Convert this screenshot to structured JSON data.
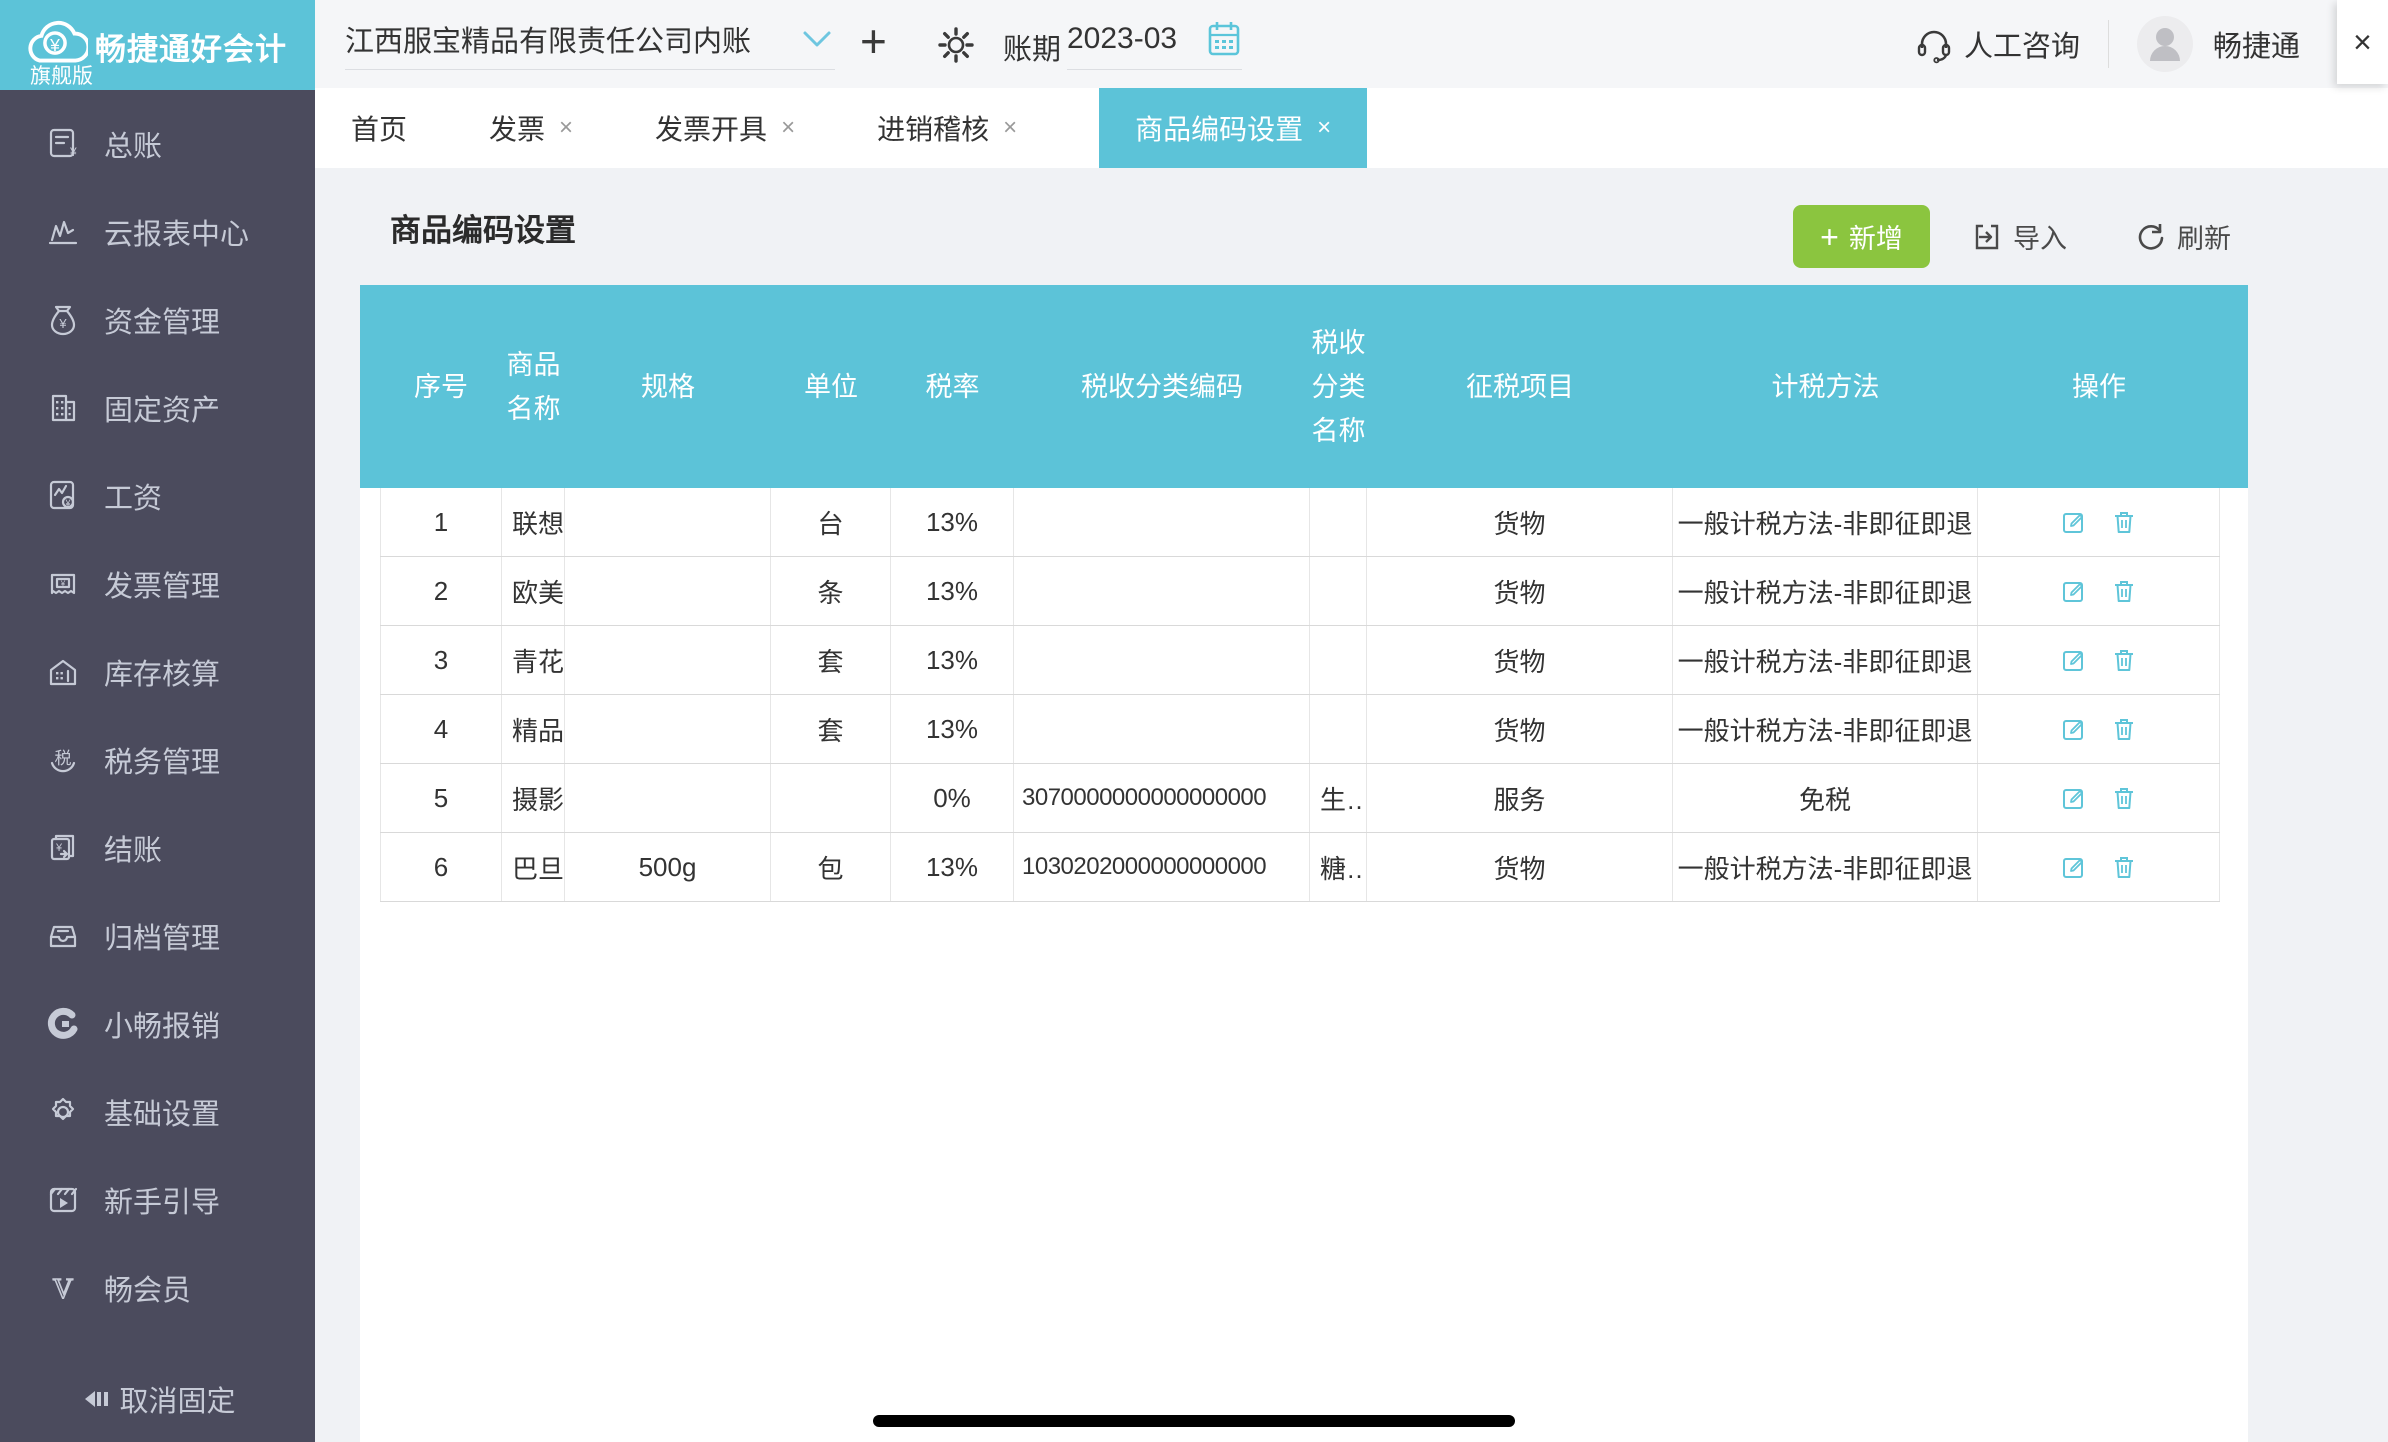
{
  "colors": {
    "teal": "#5cc3d8",
    "sidebar": "#4b4b5d",
    "green": "#8bc53f",
    "icon_teal": "#5fc5d9",
    "page_bg": "#f0f2f5"
  },
  "logo": {
    "title": "畅捷通好会计",
    "subtitle": "旗舰版",
    "icon": "cloud-finance-icon"
  },
  "topbar": {
    "company": "江西服宝精品有限责任公司内账",
    "add_label": "+",
    "period_label": "账期",
    "period_value": "2023-03",
    "support_label": "人工咨询",
    "user_name": "畅捷通"
  },
  "tabs": [
    {
      "label": "首页",
      "closable": false,
      "active": false
    },
    {
      "label": "发票",
      "closable": true,
      "active": false
    },
    {
      "label": "发票开具",
      "closable": true,
      "active": false
    },
    {
      "label": "进销稽核",
      "closable": true,
      "active": false
    },
    {
      "label": "商品编码设置",
      "closable": true,
      "active": true
    }
  ],
  "tabbar_close_label": "×",
  "page": {
    "title": "商品编码设置",
    "add_button": "新增",
    "import_button": "导入",
    "refresh_button": "刷新"
  },
  "table": {
    "columns": [
      "序号",
      "商品名称",
      "规格",
      "单位",
      "税率",
      "税收分类编码",
      "税收分类名称",
      "征税项目",
      "计税方法",
      "操作"
    ],
    "rows": [
      {
        "no": "1",
        "name": "联想笔记本",
        "spec": "",
        "unit": "台",
        "rate": "13%",
        "code": "",
        "cat": "",
        "item": "货物",
        "method": "一般计税方法-非即征即退"
      },
      {
        "no": "2",
        "name": "欧美集",
        "spec": "",
        "unit": "条",
        "rate": "13%",
        "code": "",
        "cat": "",
        "item": "货物",
        "method": "一般计税方法-非即征即退"
      },
      {
        "no": "3",
        "name": "青花瓷",
        "spec": "",
        "unit": "套",
        "rate": "13%",
        "code": "",
        "cat": "",
        "item": "货物",
        "method": "一般计税方法-非即征即退"
      },
      {
        "no": "4",
        "name": "精品茶",
        "spec": "",
        "unit": "套",
        "rate": "13%",
        "code": "",
        "cat": "",
        "item": "货物",
        "method": "一般计税方法-非即征即退"
      },
      {
        "no": "5",
        "name": "摄影",
        "spec": "",
        "unit": "",
        "rate": "0%",
        "code": "3070000000000000000",
        "cat": "生…",
        "item": "服务",
        "method": "免税"
      },
      {
        "no": "6",
        "name": "巴旦木",
        "spec": "500g",
        "unit": "包",
        "rate": "13%",
        "code": "1030202000000000000",
        "cat": "糖…",
        "item": "货物",
        "method": "一般计税方法-非即征即退"
      }
    ]
  },
  "sidebar": {
    "items": [
      {
        "label": "总账",
        "icon": "ledger-icon"
      },
      {
        "label": "云报表中心",
        "icon": "cloud-report-icon"
      },
      {
        "label": "资金管理",
        "icon": "funds-icon"
      },
      {
        "label": "固定资产",
        "icon": "fixed-assets-icon"
      },
      {
        "label": "工资",
        "icon": "salary-icon"
      },
      {
        "label": "发票管理",
        "icon": "invoice-icon"
      },
      {
        "label": "库存核算",
        "icon": "inventory-icon"
      },
      {
        "label": "税务管理",
        "icon": "tax-icon"
      },
      {
        "label": "结账",
        "icon": "closing-icon"
      },
      {
        "label": "归档管理",
        "icon": "archive-icon"
      },
      {
        "label": "小畅报销",
        "icon": "reimburse-icon"
      },
      {
        "label": "基础设置",
        "icon": "settings-icon"
      },
      {
        "label": "新手引导",
        "icon": "guide-icon"
      },
      {
        "label": "畅会员",
        "icon": "member-icon"
      }
    ],
    "unpin_label": "取消固定",
    "unpin_icon": "collapse-pin-icon"
  }
}
